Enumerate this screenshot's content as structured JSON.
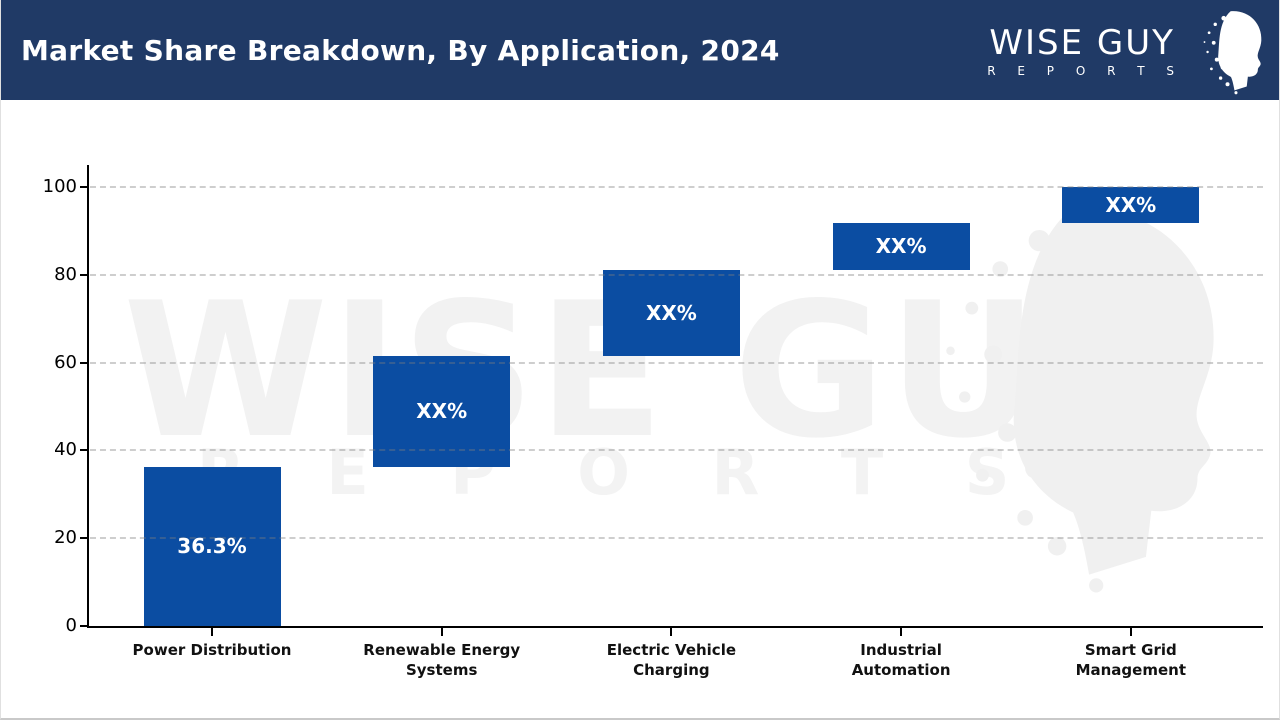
{
  "header": {
    "title": "Market Share Breakdown, By Application, 2024",
    "bg_color": "#203a66",
    "logo": {
      "line1": "WISE GUY",
      "line2": "R E P O R T S",
      "icon": "dotted-face"
    }
  },
  "watermark": {
    "line1": "WISE GUY",
    "line2": "R E P O R T S",
    "icon": "dotted-face",
    "color": "#f2f2f2"
  },
  "chart_data": {
    "type": "bar",
    "subtype": "floating-waterfall",
    "title": "Market Share Breakdown, By Application, 2024",
    "unit": "%",
    "categories": [
      "Power Distribution",
      "Renewable Energy\nSystems",
      "Electric Vehicle\nCharging",
      "Industrial\nAutomation",
      "Smart Grid\nManagement"
    ],
    "series": [
      {
        "name": "Market Share",
        "segments": [
          {
            "category": "Power Distribution",
            "start": 0,
            "end": 36.3,
            "label": "36.3%"
          },
          {
            "category": "Renewable Energy Systems",
            "start": 36.3,
            "end": 61.6,
            "label": "XX%"
          },
          {
            "category": "Electric Vehicle Charging",
            "start": 61.6,
            "end": 81.1,
            "label": "XX%"
          },
          {
            "category": "Industrial Automation",
            "start": 81.1,
            "end": 91.8,
            "label": "XX%"
          },
          {
            "category": "Smart Grid Management",
            "start": 91.8,
            "end": 100,
            "label": "XX%"
          }
        ]
      }
    ],
    "yticks": [
      0,
      20,
      40,
      60,
      80,
      100
    ],
    "ylim": [
      0,
      105
    ],
    "xlabel": "",
    "ylabel": "",
    "grid": "dashed-horizontal",
    "legend": "none",
    "bar_color": "#0b4da2",
    "bar_label_color": "#ffffff",
    "axis_color": "#000000",
    "grid_color": "#d8d8d8"
  }
}
